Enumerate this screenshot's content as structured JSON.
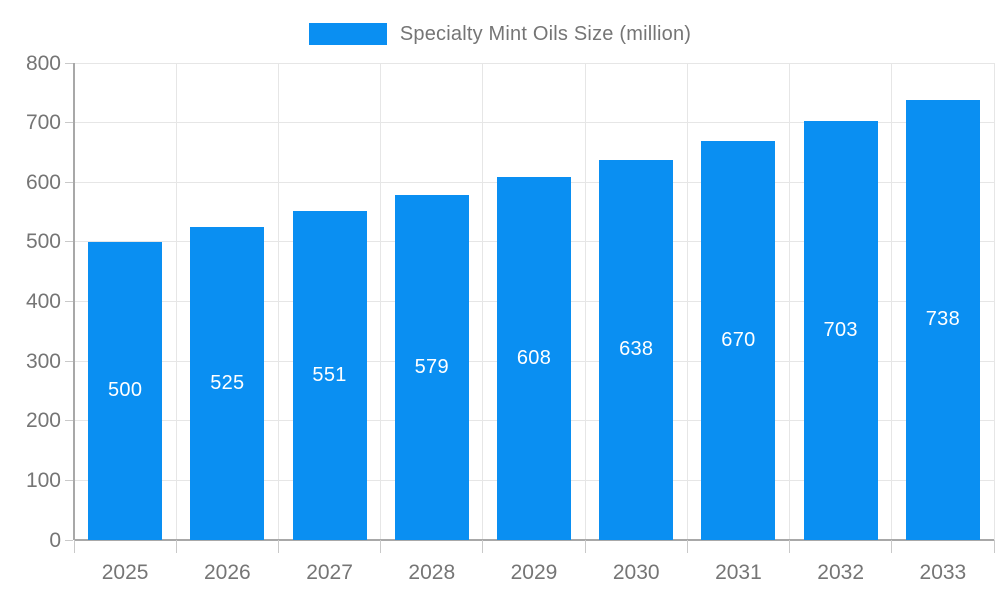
{
  "chart_data": {
    "type": "bar",
    "title": "Specialty Mint Oils Size (million)",
    "categories": [
      "2025",
      "2026",
      "2027",
      "2028",
      "2029",
      "2030",
      "2031",
      "2032",
      "2033"
    ],
    "values": [
      500,
      525,
      551,
      579,
      608,
      638,
      670,
      703,
      738
    ],
    "xlabel": "",
    "ylabel": "",
    "ylim": [
      0,
      800
    ],
    "ytick_step": 100,
    "grid": true,
    "legend_position": "top-center",
    "value_labels": "centered-inside-bars",
    "colors": {
      "bar": "#0A8FF2",
      "value_label": "#FFFFFF",
      "axis_text": "#757575",
      "grid_line": "#E6E6E6",
      "axis_line": "#A8A8A8",
      "tick_line": "#C9C9C9",
      "background": "#FFFFFF"
    }
  }
}
